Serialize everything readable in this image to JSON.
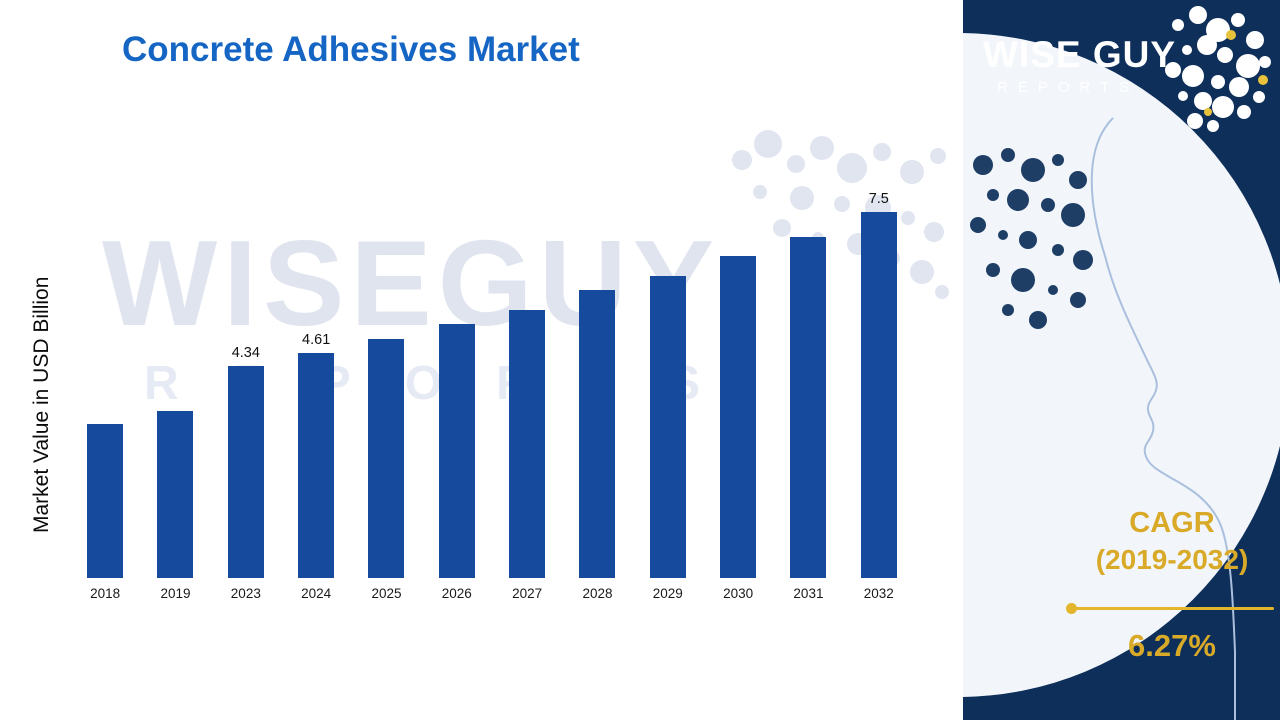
{
  "header": {
    "title": "Concrete Adhesives Market"
  },
  "watermark": {
    "line1": "WISEGUY",
    "line2": "REPORTS"
  },
  "brand": {
    "name_line1": "WISE GUY",
    "name_line2": "REPORTS"
  },
  "panel": {
    "cagr_label": "CAGR",
    "cagr_range": "(2019-2032)",
    "cagr_value": "6.27%"
  },
  "colors": {
    "title": "#1565c4",
    "bar": "#154a9c",
    "panel_navy": "#0d2f5a",
    "panel_circle": "#f2f6fb",
    "gold": "#d9a928",
    "watermark": "#dfe4ef"
  },
  "chart_data": {
    "type": "bar",
    "title": "Concrete Adhesives Market",
    "xlabel": "",
    "ylabel": "Market Value in USD Billion",
    "categories": [
      "2018",
      "2019",
      "2023",
      "2024",
      "2025",
      "2026",
      "2027",
      "2028",
      "2029",
      "2030",
      "2031",
      "2032"
    ],
    "values": [
      3.15,
      3.42,
      4.34,
      4.61,
      4.9,
      5.2,
      5.5,
      5.9,
      6.2,
      6.6,
      7.0,
      7.5
    ],
    "value_labels": [
      "",
      "",
      "4.34",
      "4.61",
      "",
      "",
      "",
      "",
      "",
      "",
      "",
      "7.5"
    ],
    "unit": "USD Billion",
    "ylim": [
      0,
      8
    ],
    "grid": false,
    "legend": "none"
  }
}
